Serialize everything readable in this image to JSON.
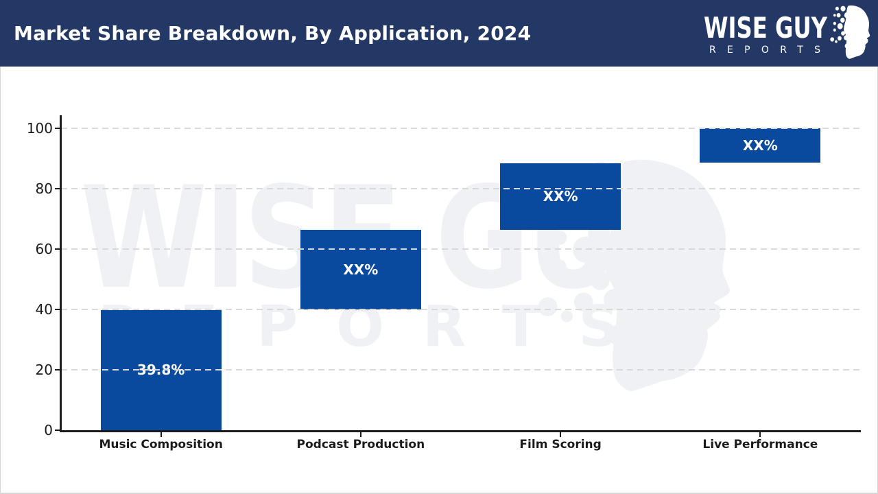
{
  "header": {
    "title": "Market Share Breakdown, By Application, 2024",
    "brand": {
      "name_line": "WISE GUY",
      "sub_line": "REPORTS"
    }
  },
  "watermark": {
    "line1": "WISE GUY",
    "line2": "REPORTS"
  },
  "colors": {
    "header_bg": "#233864",
    "bar": "#0a4a9e",
    "grid": "#d9d9d9",
    "axis": "#1c1c1c",
    "watermark": "#f0f1f4",
    "title_text": "#ffffff",
    "bar_label_text": "#ffffff"
  },
  "chart_data": {
    "type": "bar",
    "subtype": "waterfall",
    "title": "Market Share Breakdown, By Application, 2024",
    "categories": [
      "Music Composition",
      "Podcast Production",
      "Film Scoring",
      "Live Performance"
    ],
    "segments": [
      {
        "category": "Music Composition",
        "start": 0,
        "end": 39.8,
        "label": "39.8%"
      },
      {
        "category": "Podcast Production",
        "start": 39.9,
        "end": 66.4,
        "label": "XX%"
      },
      {
        "category": "Film Scoring",
        "start": 66.4,
        "end": 88.4,
        "label": "XX%"
      },
      {
        "category": "Live Performance",
        "start": 88.6,
        "end": 100.1,
        "label": "XX%"
      }
    ],
    "yticks": [
      0,
      20,
      40,
      60,
      80,
      100
    ],
    "ylim": [
      0,
      104.3
    ],
    "xlabel": "",
    "ylabel": "",
    "grid": "dashed-horizontal-above-bars",
    "legend": "none",
    "bar_color": "#0a4a9e"
  }
}
